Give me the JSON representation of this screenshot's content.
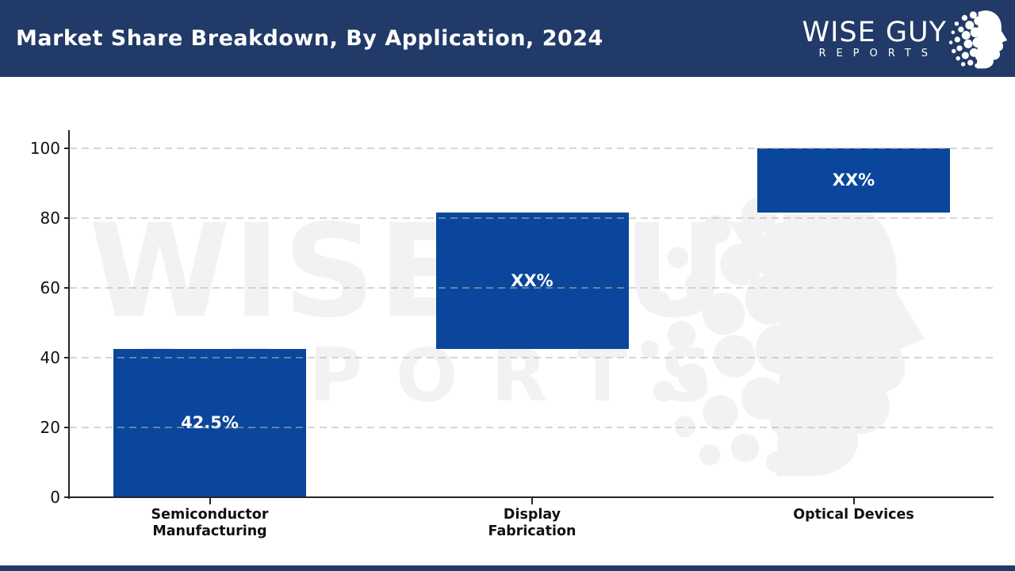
{
  "header": {
    "title": "Market Share Breakdown, By Application, 2024",
    "logo": {
      "line1": "WISE GUY",
      "line2": "REPORTS"
    }
  },
  "watermark": {
    "line1": "WISE GUY",
    "line2": "REPORTS"
  },
  "colors": {
    "header_bg": "#213a67",
    "footer_bg": "#213a67",
    "bar": "#0a469b",
    "bar_label": "#ffffff",
    "grid": "#c8c8c8",
    "axis": "#262626",
    "watermark": "#f2f2f4"
  },
  "chart_data": {
    "type": "bar",
    "variant": "stacked-waterfall-breakdown",
    "title": "Market Share Breakdown, By Application, 2024",
    "categories": [
      "Semiconductor Manufacturing",
      "Display Fabrication",
      "Optical Devices"
    ],
    "category_label_lines": [
      [
        "Semiconductor",
        "Manufacturing"
      ],
      [
        "Display",
        "Fabrication"
      ],
      [
        "Optical Devices"
      ]
    ],
    "series": [
      {
        "name": "Market share (%)",
        "segments": [
          {
            "category": "Semiconductor Manufacturing",
            "start": 0,
            "end": 42.5,
            "label": "42.5%"
          },
          {
            "category": "Display Fabrication",
            "start": 42.5,
            "end": 81.5,
            "label": "XX%"
          },
          {
            "category": "Optical Devices",
            "start": 81.5,
            "end": 100,
            "label": "XX%"
          }
        ]
      }
    ],
    "bar_labels": [
      "42.5%",
      "XX%",
      "XX%"
    ],
    "yticks": [
      0,
      20,
      40,
      60,
      80,
      100
    ],
    "ylim": [
      0,
      105
    ],
    "xlabel": "",
    "ylabel": "",
    "grid": "horizontal-dashed-over-bars",
    "legend": "none"
  }
}
